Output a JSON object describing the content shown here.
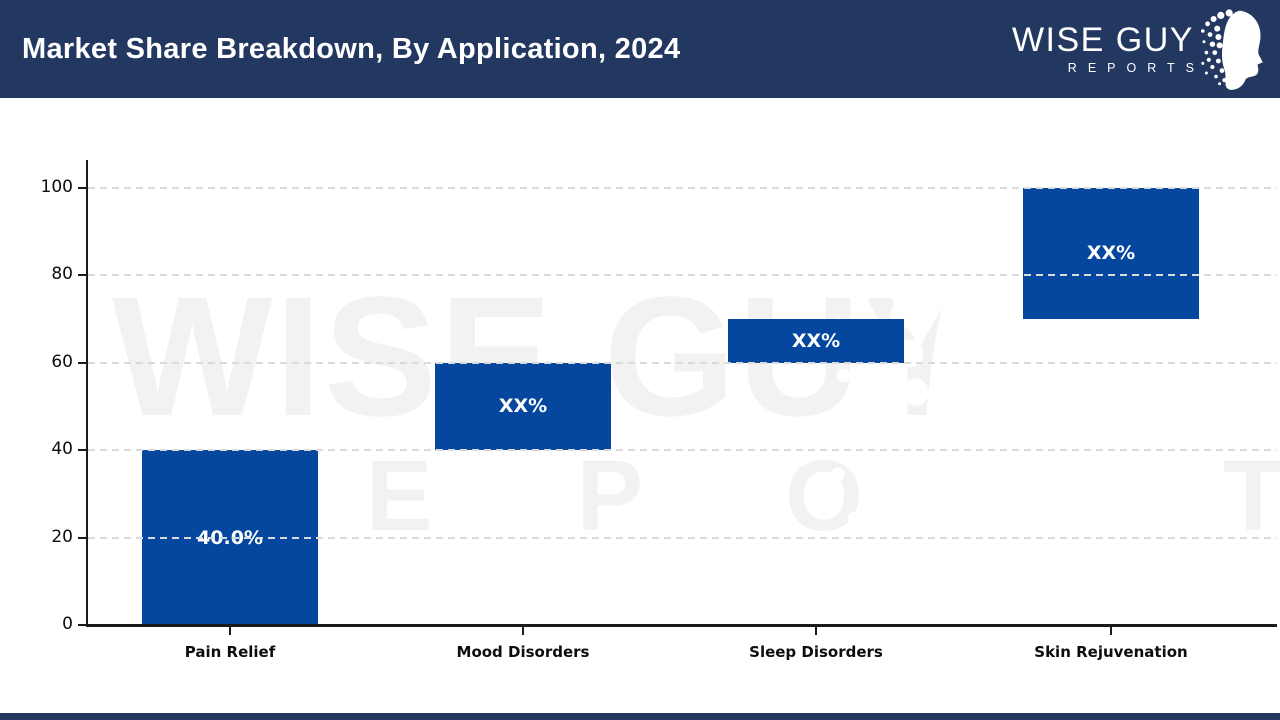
{
  "header": {
    "title": "Market Share Breakdown, By Application, 2024",
    "logo_line1": "WISE GUY",
    "logo_line2": "REPORTS"
  },
  "watermark": {
    "line1": "WISE GUY",
    "line2": "R E P O R T S",
    "face_icon": "dotted-profile-face"
  },
  "colors": {
    "header_bg": "#233861",
    "footer_bg": "#233861",
    "bar": "#05469e",
    "grid": "#dadada",
    "axis": "#1a1a1a",
    "bar_label": "#ffffff",
    "watermark": "#f2f2f2"
  },
  "chart_data": {
    "type": "bar",
    "subtype": "waterfall",
    "title": "Market Share Breakdown, By Application, 2024",
    "xlabel": "",
    "ylabel": "",
    "categories": [
      "Pain Relief",
      "Mood Disorders",
      "Sleep Disorders",
      "Skin Rejuvenation"
    ],
    "segments": [
      {
        "category": "Pain Relief",
        "start": 0,
        "end": 40,
        "label": "40.0%"
      },
      {
        "category": "Mood Disorders",
        "start": 40,
        "end": 60,
        "label": "XX%"
      },
      {
        "category": "Sleep Disorders",
        "start": 60,
        "end": 70,
        "label": "XX%"
      },
      {
        "category": "Skin Rejuvenation",
        "start": 70,
        "end": 100,
        "label": "XX%"
      }
    ],
    "yticks": [
      0,
      20,
      40,
      60,
      80,
      100
    ],
    "ylim": [
      0,
      106
    ],
    "grid": "horizontal-dashed",
    "legend": "none"
  }
}
